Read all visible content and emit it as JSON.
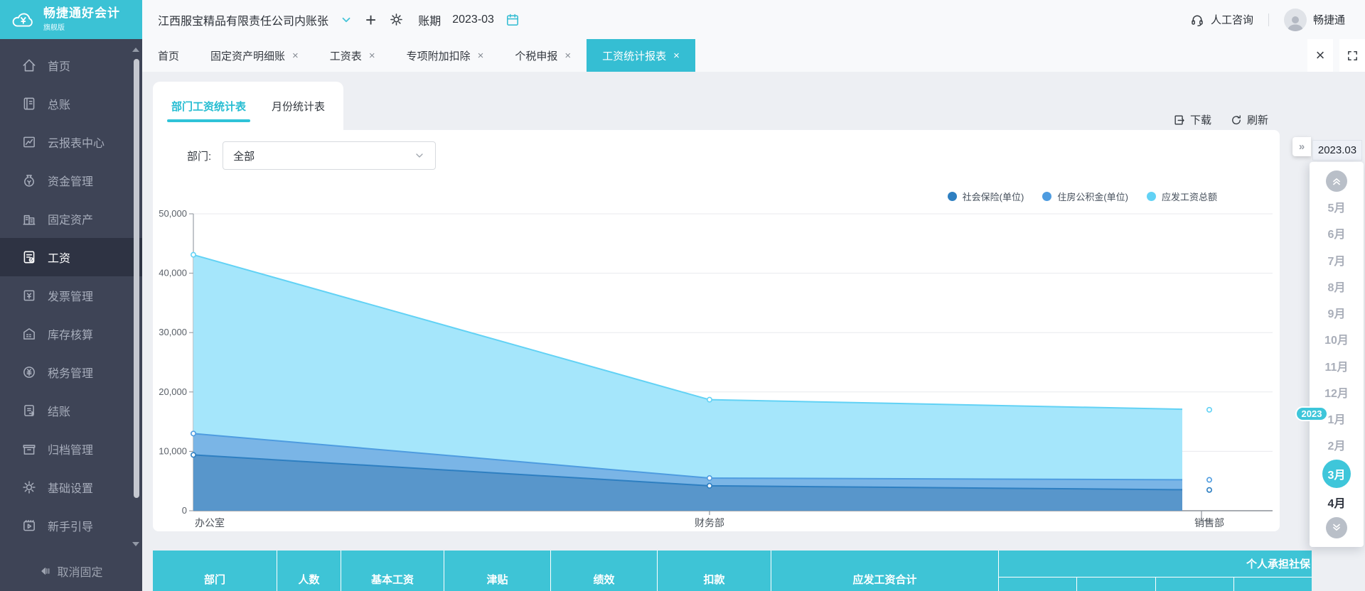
{
  "brand": {
    "name": "畅捷通好会计",
    "edition": "旗舰版"
  },
  "topbar": {
    "company": "江西服宝精品有限责任公司内账张",
    "period_label": "账期",
    "period_value": "2023-03",
    "help_label": "人工咨询",
    "user_name": "畅捷通"
  },
  "sidebar": {
    "items": [
      {
        "label": "首页",
        "icon": "home-icon",
        "active": false
      },
      {
        "label": "总账",
        "icon": "ledger-icon",
        "active": false
      },
      {
        "label": "云报表中心",
        "icon": "cloud-report-icon",
        "active": false
      },
      {
        "label": "资金管理",
        "icon": "funds-icon",
        "active": false
      },
      {
        "label": "固定资产",
        "icon": "fixed-assets-icon",
        "active": false
      },
      {
        "label": "工资",
        "icon": "salary-icon",
        "active": true
      },
      {
        "label": "发票管理",
        "icon": "invoice-icon",
        "active": false
      },
      {
        "label": "库存核算",
        "icon": "inventory-icon",
        "active": false
      },
      {
        "label": "税务管理",
        "icon": "tax-icon",
        "active": false
      },
      {
        "label": "结账",
        "icon": "closing-icon",
        "active": false
      },
      {
        "label": "归档管理",
        "icon": "archive-icon",
        "active": false
      },
      {
        "label": "基础设置",
        "icon": "settings-icon",
        "active": false
      },
      {
        "label": "新手引导",
        "icon": "guide-icon",
        "active": false
      }
    ],
    "unpin_label": "取消固定"
  },
  "tabs": [
    {
      "label": "首页",
      "closable": false,
      "active": false
    },
    {
      "label": "固定资产明细账",
      "closable": true,
      "active": false
    },
    {
      "label": "工资表",
      "closable": true,
      "active": false
    },
    {
      "label": "专项附加扣除",
      "closable": true,
      "active": false
    },
    {
      "label": "个税申报",
      "closable": true,
      "active": false
    },
    {
      "label": "工资统计报表",
      "closable": true,
      "active": true
    }
  ],
  "subtabs": [
    {
      "label": "部门工资统计表",
      "active": true
    },
    {
      "label": "月份统计表",
      "active": false
    }
  ],
  "toolbar": {
    "download_label": "下载",
    "refresh_label": "刷新"
  },
  "filter": {
    "label": "部门:",
    "value": "全部"
  },
  "month_panel": {
    "current": "2023.03",
    "year_badge": "2023",
    "months": [
      {
        "label": "5月",
        "state": "muted"
      },
      {
        "label": "6月",
        "state": "muted"
      },
      {
        "label": "7月",
        "state": "muted"
      },
      {
        "label": "8月",
        "state": "muted"
      },
      {
        "label": "9月",
        "state": "muted"
      },
      {
        "label": "10月",
        "state": "muted"
      },
      {
        "label": "11月",
        "state": "muted"
      },
      {
        "label": "12月",
        "state": "muted"
      },
      {
        "label": "1月",
        "state": "muted"
      },
      {
        "label": "2月",
        "state": "muted"
      },
      {
        "label": "3月",
        "state": "selected"
      },
      {
        "label": "4月",
        "state": "normal"
      }
    ]
  },
  "chart_data": {
    "type": "area",
    "categories": [
      "办公室",
      "财务部",
      "销售部"
    ],
    "series": [
      {
        "name": "社会保险(单位)",
        "color": "#2e7fc1",
        "fill": "#5896cb",
        "values": [
          9400,
          4200,
          3500
        ]
      },
      {
        "name": "住房公积金(单位)",
        "color": "#4e9ce0",
        "fill": "#7ab5e6",
        "values": [
          13000,
          5500,
          5200
        ]
      },
      {
        "name": "应发工资总额",
        "color": "#62d2f5",
        "fill": "#a5e6fb",
        "values": [
          43100,
          18700,
          17000
        ]
      }
    ],
    "ylim": [
      0,
      50000
    ],
    "yticks": [
      "0",
      "10,000",
      "20,000",
      "30,000",
      "40,000",
      "50,000"
    ],
    "grid": true,
    "legend_position": "top-right"
  },
  "table": {
    "columns": [
      "部门",
      "人数",
      "基本工资",
      "津贴",
      "绩效",
      "扣款",
      "应发工资合计"
    ],
    "group_header": "个人承担社保"
  }
}
